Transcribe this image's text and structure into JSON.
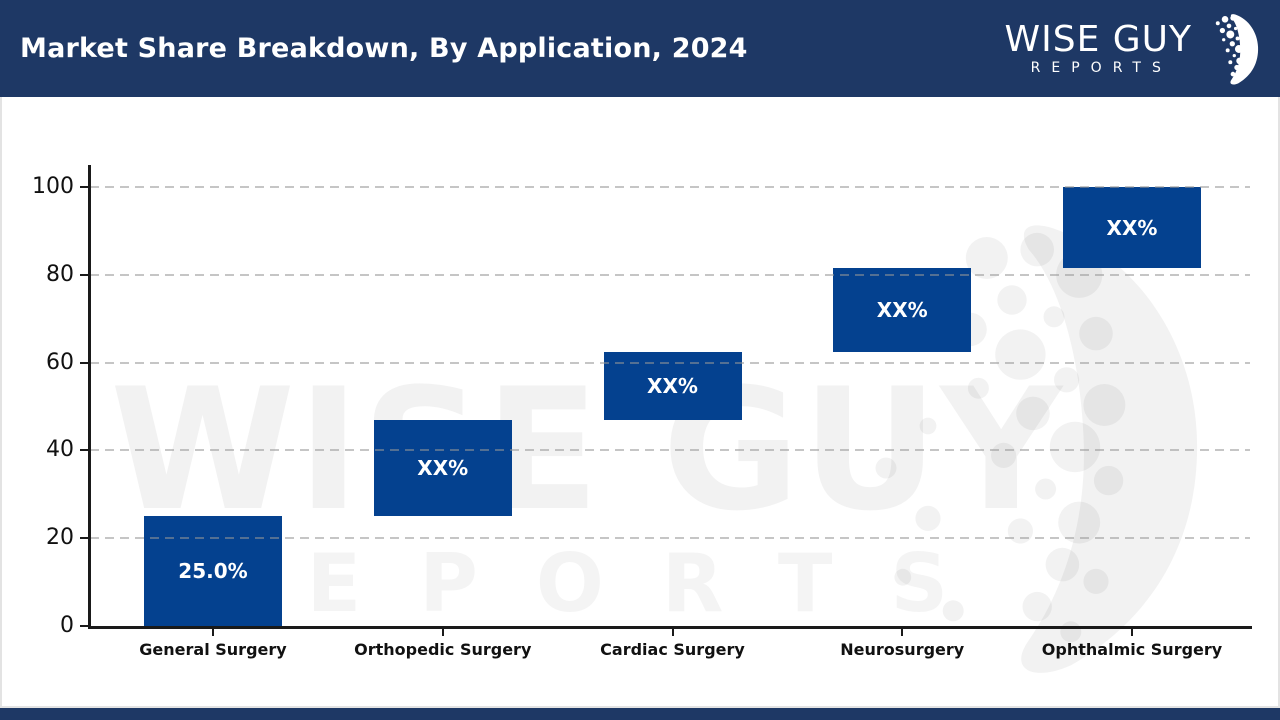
{
  "header": {
    "title": "Market Share Breakdown, By Application, 2024",
    "bg_color": "#1e3865",
    "logo": {
      "line1": "WISE GUY",
      "line2": "REPORTS"
    }
  },
  "watermark": {
    "line1": "WISE GUY",
    "line2": "REPORTS"
  },
  "chart_data": {
    "type": "bar",
    "subtype": "waterfall",
    "title": "Market Share Breakdown, By Application, 2024",
    "categories": [
      "General Surgery",
      "Orthopedic Surgery",
      "Cardiac Surgery",
      "Neurosurgery",
      "Ophthalmic Surgery"
    ],
    "segments": [
      {
        "category": "General Surgery",
        "start": 0,
        "end": 25,
        "label": "25.0%"
      },
      {
        "category": "Orthopedic Surgery",
        "start": 25,
        "end": 47,
        "label": "XX%"
      },
      {
        "category": "Cardiac Surgery",
        "start": 47,
        "end": 62.5,
        "label": "XX%"
      },
      {
        "category": "Neurosurgery",
        "start": 62.5,
        "end": 81.5,
        "label": "XX%"
      },
      {
        "category": "Ophthalmic Surgery",
        "start": 81.5,
        "end": 100,
        "label": "XX%"
      }
    ],
    "ylim": [
      0,
      105
    ],
    "yticks": [
      0,
      20,
      40,
      60,
      80,
      100
    ],
    "xlabel": "",
    "ylabel": "",
    "grid": "horizontal-dashed",
    "legend": "none",
    "bar_color": "#04418f",
    "bar_label_color": "#ffffff",
    "axis_color": "#1a1a1a"
  }
}
